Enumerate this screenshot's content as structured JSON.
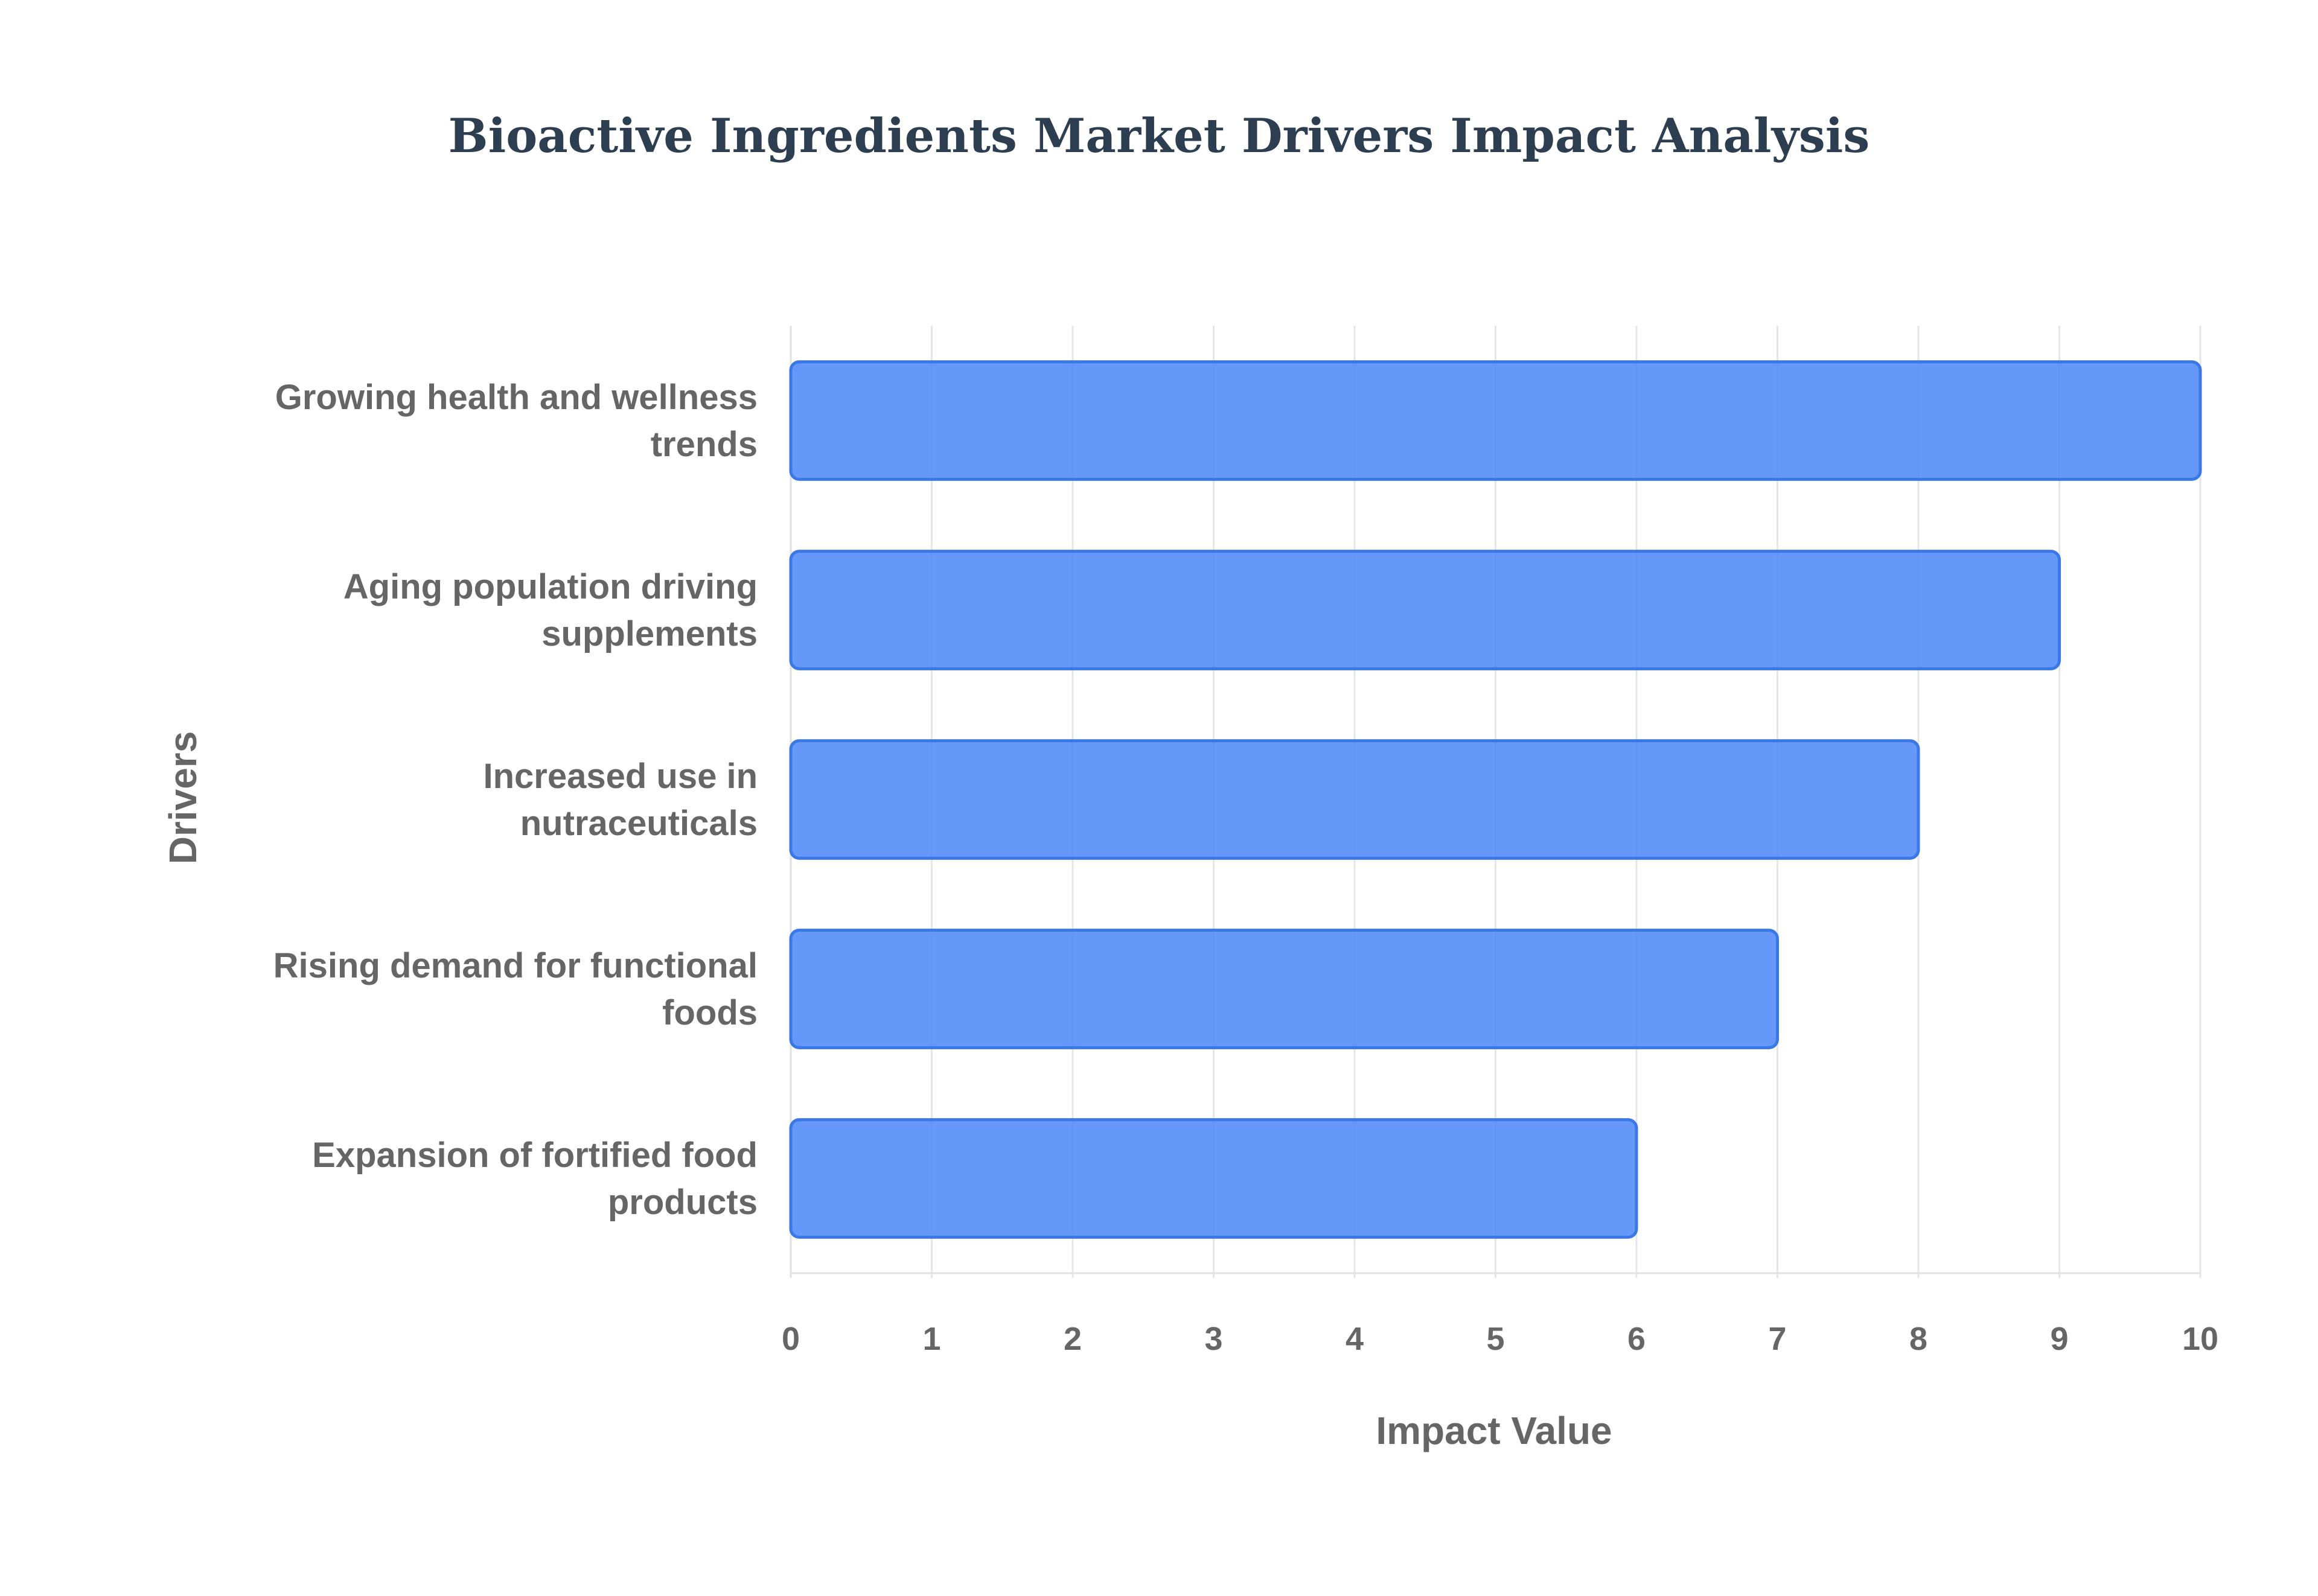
{
  "chart_data": {
    "type": "bar",
    "orientation": "horizontal",
    "title": "Bioactive Ingredients Market Drivers Impact Analysis",
    "xlabel": "Impact Value",
    "ylabel": "Drivers",
    "categories": [
      [
        "Growing health and wellness",
        "trends"
      ],
      [
        "Aging population driving",
        "supplements"
      ],
      [
        "Increased use in",
        "nutraceuticals"
      ],
      [
        "Rising demand for functional",
        "foods"
      ],
      [
        "Expansion of fortified food",
        "products"
      ]
    ],
    "values": [
      10,
      9,
      8,
      7,
      6
    ],
    "xlim": [
      0,
      10
    ],
    "xticks": [
      "0",
      "1",
      "2",
      "3",
      "4",
      "5",
      "6",
      "7",
      "8",
      "9",
      "10"
    ],
    "grid": true,
    "legend": "none",
    "colors": {
      "bar_fill": "#4a86f7",
      "bar_stroke": "#3b78e7",
      "title": "#2c3e50",
      "text": "#666666",
      "grid": "#e6e6e6"
    }
  }
}
